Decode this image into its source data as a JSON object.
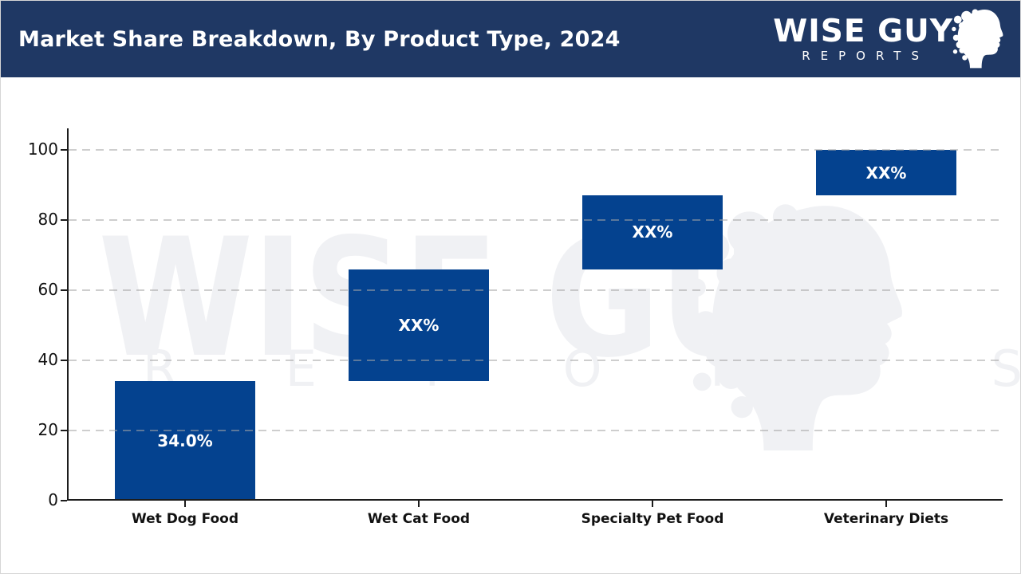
{
  "header": {
    "title": "Market Share Breakdown, By Product Type, 2024",
    "logo": {
      "line1": "WISE GUY",
      "line2": "REPORTS"
    }
  },
  "watermark": {
    "line1": "WISE GUY",
    "line2": "R E P O R T S"
  },
  "chart_data": {
    "type": "bar",
    "subtype": "waterfall",
    "title": "Market Share Breakdown, By Product Type, 2024",
    "categories": [
      "Wet Dog Food",
      "Wet Cat Food",
      "Specialty Pet Food",
      "Veterinary Diets"
    ],
    "segments": [
      {
        "category": "Wet Dog Food",
        "start": 0,
        "end": 34,
        "label": "34.0%"
      },
      {
        "category": "Wet Cat Food",
        "start": 34,
        "end": 66,
        "label": "XX%"
      },
      {
        "category": "Specialty Pet Food",
        "start": 66,
        "end": 87,
        "label": "XX%"
      },
      {
        "category": "Veterinary Diets",
        "start": 87,
        "end": 100,
        "label": "XX%"
      }
    ],
    "yticks": [
      0,
      20,
      40,
      60,
      80,
      100
    ],
    "ylim": [
      0,
      106
    ],
    "xlabel": "",
    "ylabel": "",
    "grid": "horizontal-dashed-above-bars",
    "legend": "none"
  },
  "colors": {
    "header_bg": "#1f3864",
    "bar": "#04428f",
    "axis": "#1c1c1c",
    "watermark": "#f0f1f4",
    "bar_label": "#ffffff"
  }
}
